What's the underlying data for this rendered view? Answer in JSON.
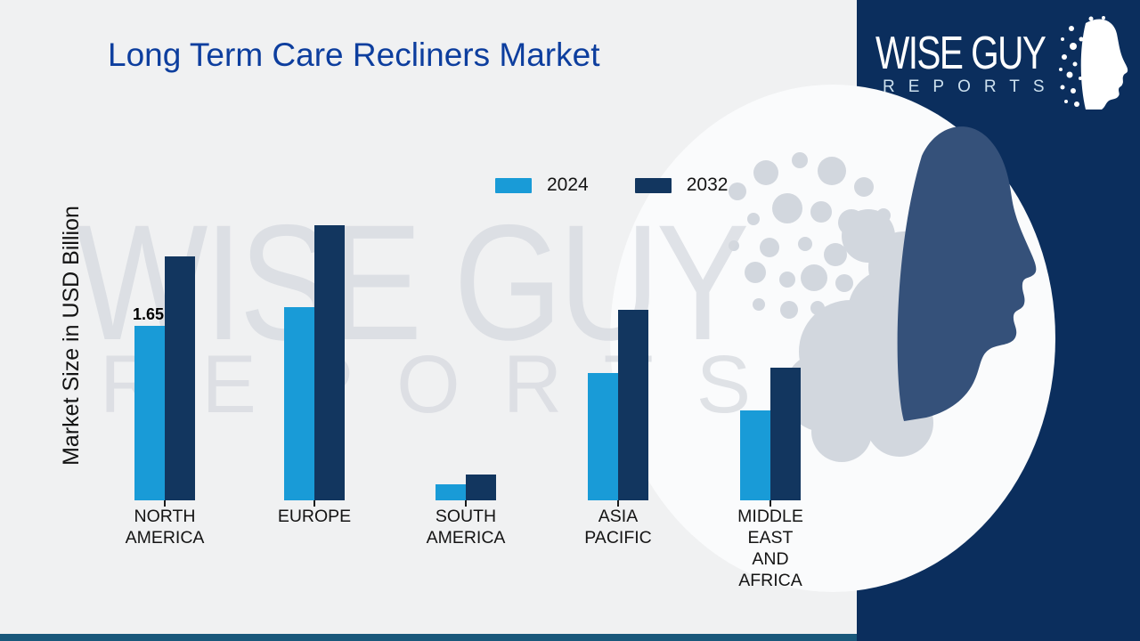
{
  "header": {
    "title": "Long Term Care Recliners Market",
    "title_color": "#0d3e9e"
  },
  "y_axis": {
    "label": "Market Size in USD Billion"
  },
  "watermark": {
    "line1": "WISE GUY",
    "line2": "REPORTS"
  },
  "brand": {
    "wordmark": "WISE GUY",
    "wordmark_sub": "REPORTS",
    "panel_color": "#0b2e5d",
    "bottom_bar_color": "#19587b"
  },
  "icons": {
    "brand_head": "dotted-face-profile-icon",
    "background_face": "face-profile-silhouette",
    "background_dots": "dot-cluster-head"
  },
  "chart_data": {
    "type": "bar",
    "title": "Long Term Care Recliners Market",
    "xlabel": "",
    "ylabel": "Market Size in USD Billion",
    "units": "USD Billion",
    "categories": [
      "NORTH AMERICA",
      "EUROPE",
      "SOUTH AMERICA",
      "ASIA PACIFIC",
      "MIDDLE EAST AND AFRICA"
    ],
    "category_label_lines": [
      [
        "NORTH",
        "AMERICA"
      ],
      [
        "EUROPE"
      ],
      [
        "SOUTH",
        "AMERICA"
      ],
      [
        "ASIA",
        "PACIFIC"
      ],
      [
        "MIDDLE",
        "EAST",
        "AND",
        "AFRICA"
      ]
    ],
    "series": [
      {
        "name": "2024",
        "color": "#199bd7",
        "values": [
          1.65,
          1.83,
          0.15,
          1.2,
          0.85
        ]
      },
      {
        "name": "2032",
        "color": "#12365f",
        "values": [
          2.31,
          2.6,
          0.24,
          1.8,
          1.25
        ]
      }
    ],
    "data_labels": [
      {
        "series_index": 0,
        "category_index": 0,
        "text": "1.65"
      }
    ],
    "ylim": [
      0,
      2.9
    ],
    "grid": false,
    "legend_position": "top-center"
  }
}
